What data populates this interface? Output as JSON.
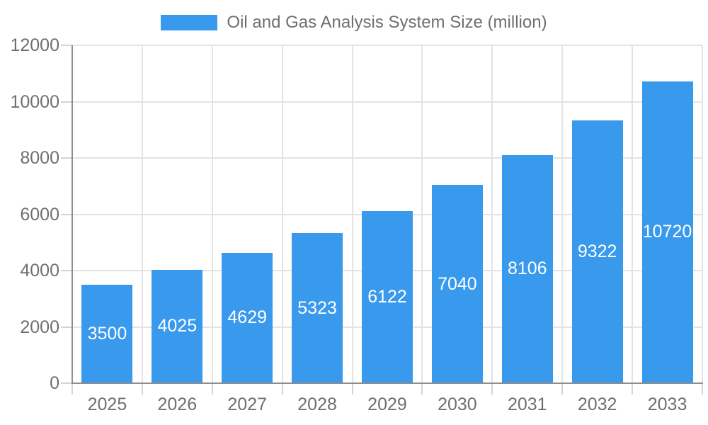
{
  "chart_data": {
    "type": "bar",
    "title": "Oil and Gas Analysis System Size (million)",
    "categories": [
      "2025",
      "2026",
      "2027",
      "2028",
      "2029",
      "2030",
      "2031",
      "2032",
      "2033"
    ],
    "values": [
      3500,
      4025,
      4629,
      5323,
      6122,
      7040,
      8106,
      9322,
      10720
    ],
    "xlabel": "",
    "ylabel": "",
    "ylim": [
      0,
      12000
    ],
    "yticks": [
      0,
      2000,
      4000,
      6000,
      8000,
      10000,
      12000
    ],
    "grid": true,
    "legend_position": "top-center",
    "bar_value_labels": true,
    "colors": {
      "bar": "#3999ED",
      "bar_value_label": "#FFFFFF",
      "axis_text": "#6F6F6F",
      "axis_line": "#8E8E8E",
      "gridline": "#E3E3E3",
      "tick_mark": "#D4D4D4",
      "background": "#FFFFFF"
    }
  }
}
